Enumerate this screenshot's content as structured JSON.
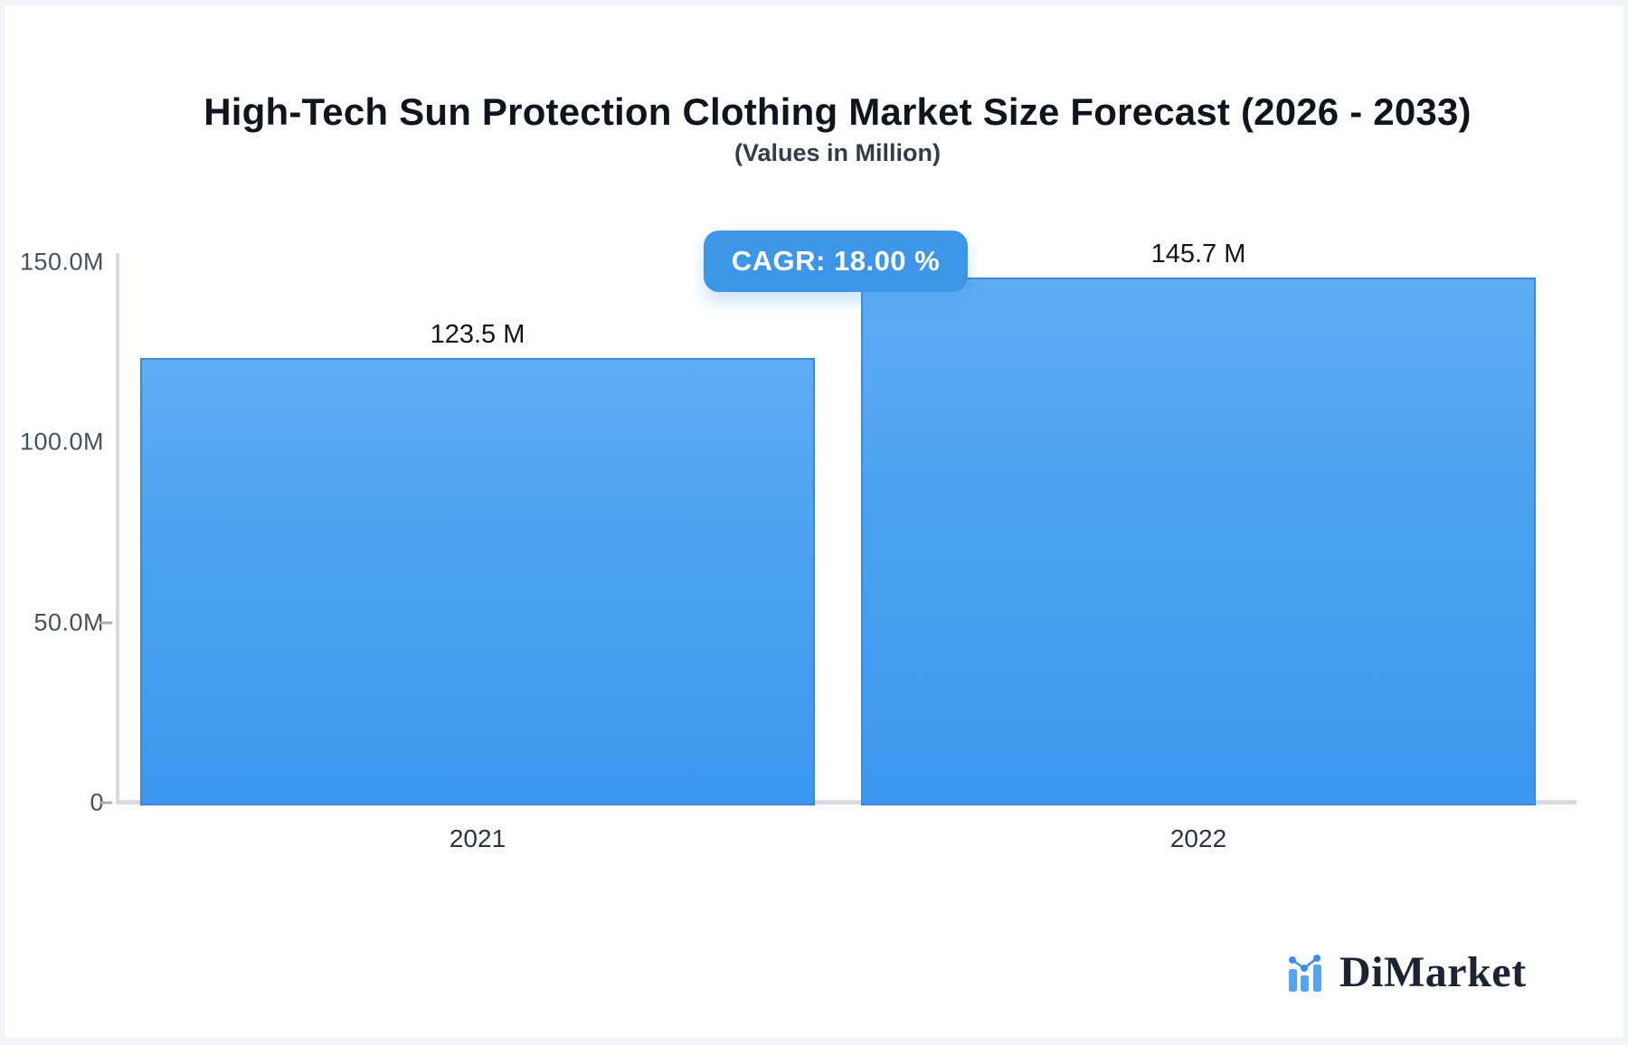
{
  "header": {
    "title": "High-Tech Sun Protection Clothing Market Size Forecast (2026 - 2033)",
    "subtitle": "(Values in Million)"
  },
  "badge": {
    "label": "CAGR: 18.00 %"
  },
  "logo": {
    "brand": "DiMarket",
    "icon": "mini-bar-chart-icon"
  },
  "colors": {
    "bar_top": "#60acf2",
    "bar_bottom": "#3b97ef",
    "bar_border": "#3d88da",
    "badge_bg": "#3e96e9",
    "axis": "#d8dbdf",
    "logo_navy": "#1b2433",
    "logo_blue": "#4a9df0"
  },
  "chart_data": {
    "type": "bar",
    "title": "High-Tech Sun Protection Clothing Market Size Forecast (2026 - 2033)",
    "subtitle": "(Values in Million)",
    "categories": [
      "2021",
      "2022"
    ],
    "values": [
      123.5,
      145.7
    ],
    "value_labels": [
      "123.5 M",
      "145.7 M"
    ],
    "xlabel": "",
    "ylabel": "",
    "ylim": [
      0,
      150
    ],
    "y_tick_values": [
      150,
      100,
      50,
      0
    ],
    "y_tick_labels": [
      "150.0M",
      "100.0M",
      "50.0M",
      "0"
    ],
    "grid": false,
    "legend": false
  }
}
